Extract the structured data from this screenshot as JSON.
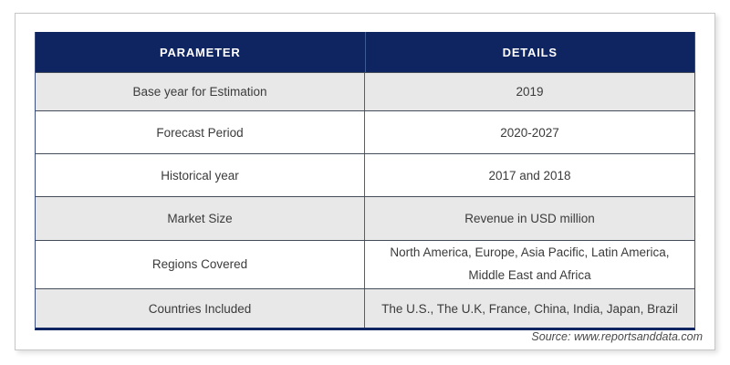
{
  "table": {
    "header": {
      "parameter": "PARAMETER",
      "details": "DETAILS"
    },
    "rows": [
      {
        "parameter": "Base year for Estimation",
        "details": "2019"
      },
      {
        "parameter": "Forecast Period",
        "details": "2020-2027"
      },
      {
        "parameter": "Historical year",
        "details": "2017 and 2018"
      },
      {
        "parameter": "Market Size",
        "details": "Revenue in USD million"
      },
      {
        "parameter": "Regions Covered",
        "details": "North America, Europe, Asia Pacific, Latin America, Middle East and Africa"
      },
      {
        "parameter": "Countries Included",
        "details": "The U.S., The  U.K, France, China, India, Japan, Brazil"
      }
    ]
  },
  "source": "Source: www.reportsanddata.com",
  "colors": {
    "header_bg": "#0e2562",
    "header_text": "#ffffff",
    "alt_row_bg": "#e8e8e8",
    "row_bg": "#ffffff",
    "cell_text": "#3b3b3b",
    "table_bottom_border": "#0e2562",
    "column_divider": "#47618e",
    "row_divider": "#454c59",
    "card_border": "#c6c6c6",
    "source_text": "#4a4a4a"
  }
}
